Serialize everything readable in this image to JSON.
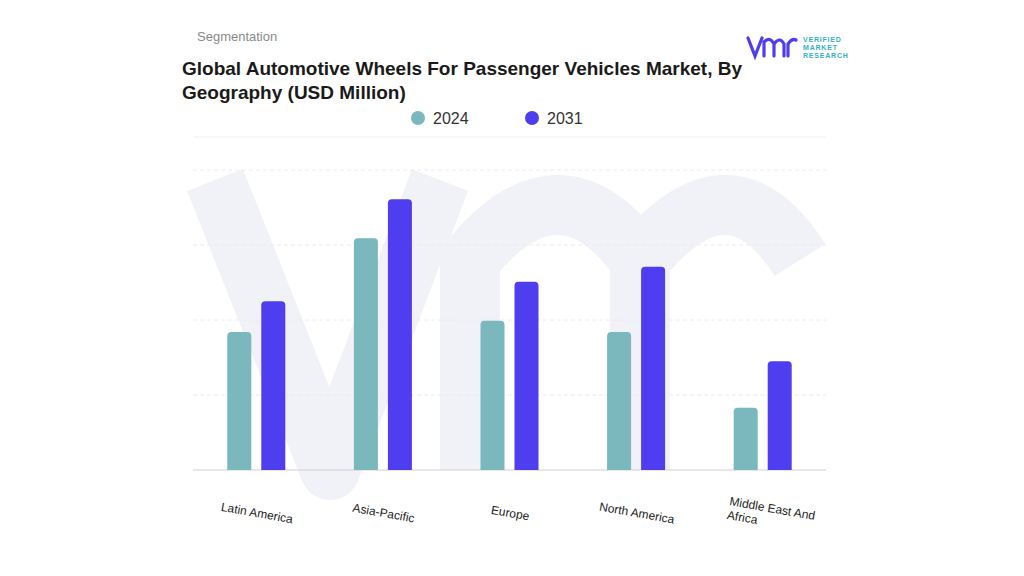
{
  "chart_data": {
    "type": "bar",
    "title": "Global Automotive Wheels For Passenger Vehicles Market, By Geography (USD Million)",
    "subtitle": "Segmentation",
    "annotations": [
      "VERIFIED",
      "MARKET",
      "RESEARCH"
    ],
    "categories": [
      "Latin America",
      "Asia-Pacific",
      "Europe",
      "North America",
      "Middle East And Africa"
    ],
    "series": [
      {
        "name": "2024",
        "color": "#7ab8bd",
        "values": [
          184,
          309,
          199,
          184,
          83
        ]
      },
      {
        "name": "2031",
        "color": "#4f3df0",
        "values": [
          225,
          361,
          251,
          271,
          145
        ]
      }
    ],
    "ylim": [
      0,
      400
    ],
    "yticks": [
      0,
      100,
      200,
      300,
      400
    ],
    "grid": true,
    "legend": "top",
    "tick_labels": "x"
  }
}
